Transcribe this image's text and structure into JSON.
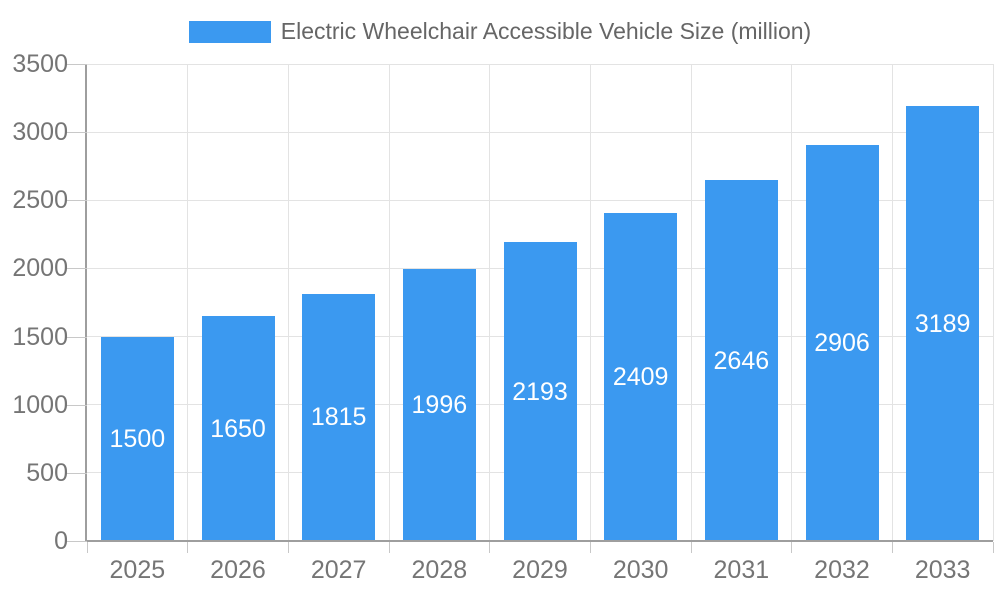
{
  "chart_data": {
    "type": "bar",
    "title": "Electric Wheelchair Accessible Vehicle Size (million)",
    "categories": [
      "2025",
      "2026",
      "2027",
      "2028",
      "2029",
      "2030",
      "2031",
      "2032",
      "2033"
    ],
    "values": [
      1500,
      1650,
      1815,
      1996,
      2193,
      2409,
      2646,
      2906,
      3189
    ],
    "xlabel": "",
    "ylabel": "",
    "ylim": [
      0,
      3500
    ],
    "yticks": [
      0,
      500,
      1000,
      1500,
      2000,
      2500,
      3000,
      3500
    ],
    "grid": true,
    "legend_position": "top",
    "value_labels": "inside-center"
  },
  "colors": {
    "bar": "#3B99F0",
    "value_label": "#FFFFFF",
    "grid": "#E3E3E3",
    "axis": "#9E9E9E",
    "tick": "#C8C8C8",
    "tick_label": "#757575",
    "legend_text": "#666666",
    "background": "#FFFFFF"
  }
}
